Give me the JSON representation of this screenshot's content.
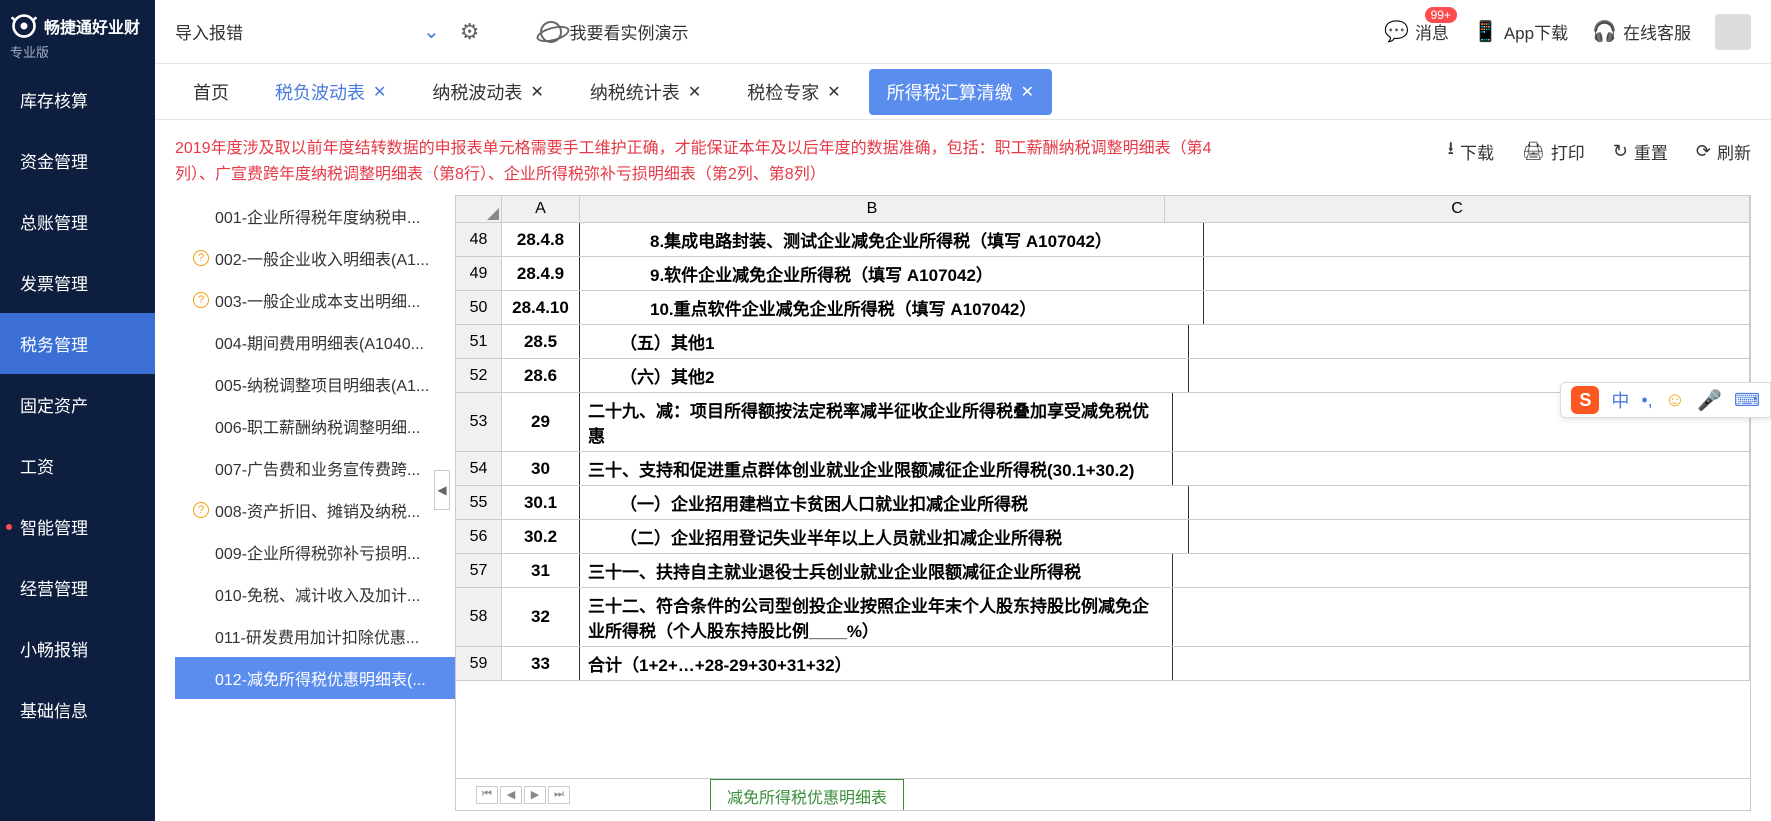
{
  "brand": {
    "name": "畅捷通好业财",
    "edition": "专业版"
  },
  "sidebar": {
    "items": [
      {
        "label": "库存核算",
        "active": false,
        "dot": false
      },
      {
        "label": "资金管理",
        "active": false,
        "dot": false
      },
      {
        "label": "总账管理",
        "active": false,
        "dot": false
      },
      {
        "label": "发票管理",
        "active": false,
        "dot": false
      },
      {
        "label": "税务管理",
        "active": true,
        "dot": false
      },
      {
        "label": "固定资产",
        "active": false,
        "dot": false
      },
      {
        "label": "工资",
        "active": false,
        "dot": false
      },
      {
        "label": "智能管理",
        "active": false,
        "dot": true
      },
      {
        "label": "经营管理",
        "active": false,
        "dot": false
      },
      {
        "label": "小畅报销",
        "active": false,
        "dot": false
      },
      {
        "label": "基础信息",
        "active": false,
        "dot": false
      }
    ]
  },
  "topbar": {
    "import_error": "导入报错",
    "demo": "我要看实例演示",
    "msg": "消息",
    "msg_badge": "99+",
    "app": "App下载",
    "service": "在线客服"
  },
  "tabs": [
    {
      "label": "首页",
      "closable": false,
      "style": ""
    },
    {
      "label": "税负波动表",
      "closable": true,
      "style": "blue"
    },
    {
      "label": "纳税波动表",
      "closable": true,
      "style": ""
    },
    {
      "label": "纳税统计表",
      "closable": true,
      "style": ""
    },
    {
      "label": "税检专家",
      "closable": true,
      "style": ""
    },
    {
      "label": "所得税汇算清缴",
      "closable": true,
      "style": "active"
    }
  ],
  "warning": "2019年度涉及取以前年度结转数据的申报表单元格需要手工维护正确，才能保证本年及以后年度的数据准确，包括：职工薪酬纳税调整明细表（第4列）、广宣费跨年度纳税调整明细表（第8行）、企业所得税弥补亏损明细表（第2列、第8列）",
  "actions": {
    "download": "下载",
    "print": "打印",
    "reset": "重置",
    "refresh": "刷新"
  },
  "tree": [
    {
      "label": "001-企业所得税年度纳税申...",
      "q": false
    },
    {
      "label": "002-一般企业收入明细表(A1...",
      "q": true
    },
    {
      "label": "003-一般企业成本支出明细...",
      "q": true
    },
    {
      "label": "004-期间费用明细表(A1040...",
      "q": false
    },
    {
      "label": "005-纳税调整项目明细表(A1...",
      "q": false
    },
    {
      "label": "006-职工薪酬纳税调整明细...",
      "q": false
    },
    {
      "label": "007-广告费和业务宣传费跨...",
      "q": false
    },
    {
      "label": "008-资产折旧、摊销及纳税...",
      "q": true
    },
    {
      "label": "009-企业所得税弥补亏损明...",
      "q": false
    },
    {
      "label": "010-免税、减计收入及加计...",
      "q": false
    },
    {
      "label": "011-研发费用加计扣除优惠...",
      "q": false
    },
    {
      "label": "012-减免所得税优惠明细表(...",
      "q": false,
      "active": true
    }
  ],
  "sheet": {
    "cols": [
      "A",
      "B",
      "C"
    ],
    "rows": [
      {
        "n": "48",
        "a": "28.4.8",
        "b": "8.集成电路封装、测试企业减免企业所得税（填写 A107042）",
        "indent": "indent2"
      },
      {
        "n": "49",
        "a": "28.4.9",
        "b": "9.软件企业减免企业所得税（填写 A107042）",
        "indent": "indent2"
      },
      {
        "n": "50",
        "a": "28.4.10",
        "b": "10.重点软件企业减免企业所得税（填写 A107042）",
        "indent": "indent2"
      },
      {
        "n": "51",
        "a": "28.5",
        "b": "（五）其他1",
        "indent": "indent1"
      },
      {
        "n": "52",
        "a": "28.6",
        "b": "（六）其他2",
        "indent": "indent1"
      },
      {
        "n": "53",
        "a": "29",
        "b": "二十九、减：项目所得额按法定税率减半征收企业所得税叠加享受减免税优惠",
        "indent": ""
      },
      {
        "n": "54",
        "a": "30",
        "b": "三十、支持和促进重点群体创业就业企业限额减征企业所得税(30.1+30.2)",
        "indent": ""
      },
      {
        "n": "55",
        "a": "30.1",
        "b": "（一）企业招用建档立卡贫困人口就业扣减企业所得税",
        "indent": "indent1"
      },
      {
        "n": "56",
        "a": "30.2",
        "b": "（二）企业招用登记失业半年以上人员就业扣减企业所得税",
        "indent": "indent1"
      },
      {
        "n": "57",
        "a": "31",
        "b": "三十一、扶持自主就业退役士兵创业就业企业限额减征企业所得税",
        "indent": ""
      },
      {
        "n": "58",
        "a": "32",
        "b": "三十二、符合条件的公司型创投企业按照企业年末个人股东持股比例减免企业所得税（个人股东持股比例____%）",
        "indent": ""
      },
      {
        "n": "59",
        "a": "33",
        "b": "合计（1+2+…+28-29+30+31+32）",
        "indent": ""
      }
    ],
    "footer_tab": "减免所得税优惠明细表"
  },
  "ime": {
    "logo": "S",
    "lang": "中"
  }
}
